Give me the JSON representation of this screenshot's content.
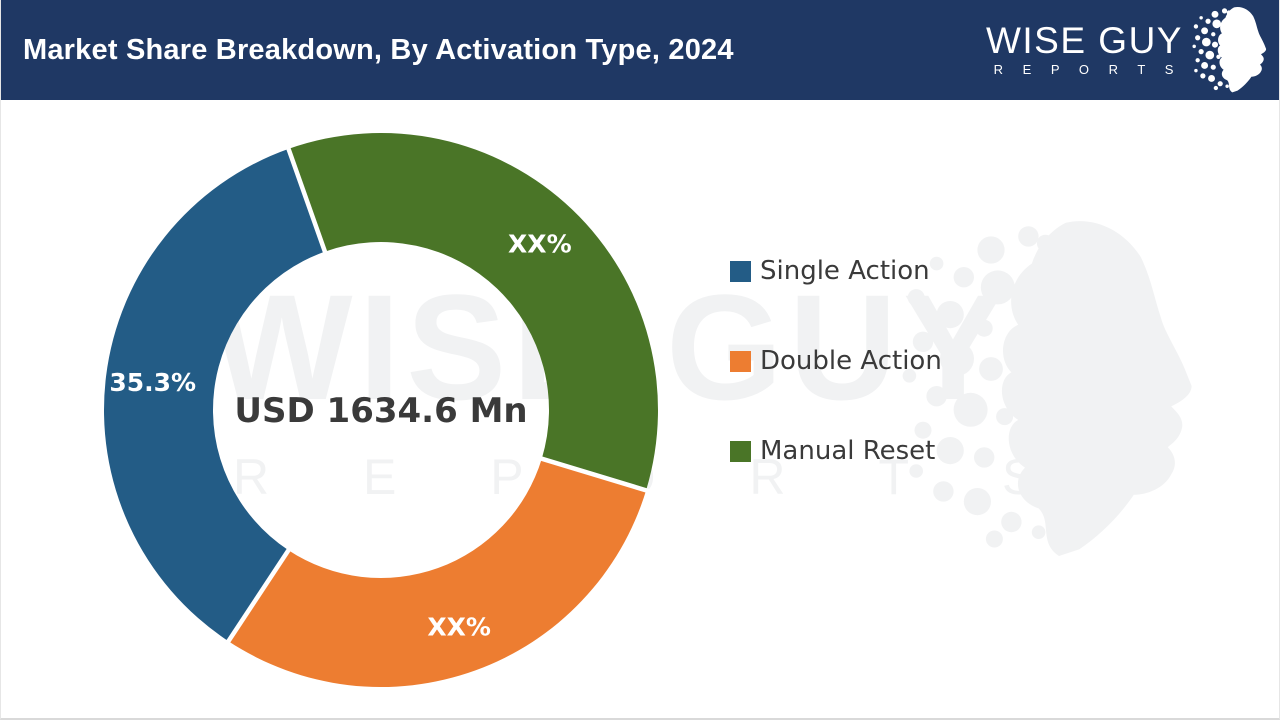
{
  "header": {
    "title": "Market Share Breakdown, By Activation Type, 2024",
    "bg_color": "#1f3864",
    "brand": {
      "line1": "WISE GUY",
      "line2": "R E P O R T S"
    }
  },
  "watermark": {
    "line1": "WISE GUY",
    "line2": "R E P O R T S",
    "color": "#f1f2f3"
  },
  "chart_data": {
    "type": "pie",
    "subtype": "donut",
    "title": "Market Share Breakdown, By Activation Type, 2024",
    "center_label": "USD 1634.6 Mn",
    "segments": [
      {
        "label": "Single Action",
        "color": "#235c86",
        "displayed_value": "35.3%",
        "pct_estimated": 35.3
      },
      {
        "label": "Double Action",
        "color": "#ed7d31",
        "displayed_value": "XX%",
        "pct_estimated": 29.6
      },
      {
        "label": "Manual Reset",
        "color": "#4a7527",
        "displayed_value": "XX%",
        "pct_estimated": 35.1
      }
    ],
    "draw_order": [
      "Manual Reset",
      "Double Action",
      "Single Action"
    ],
    "start_angle_clockwise_from_12": -19.5,
    "hole_ratio": 0.61,
    "legend_position": "right",
    "label_text_color": "#ffffff",
    "center_text_color": "#3a3a3a",
    "grid": false
  }
}
